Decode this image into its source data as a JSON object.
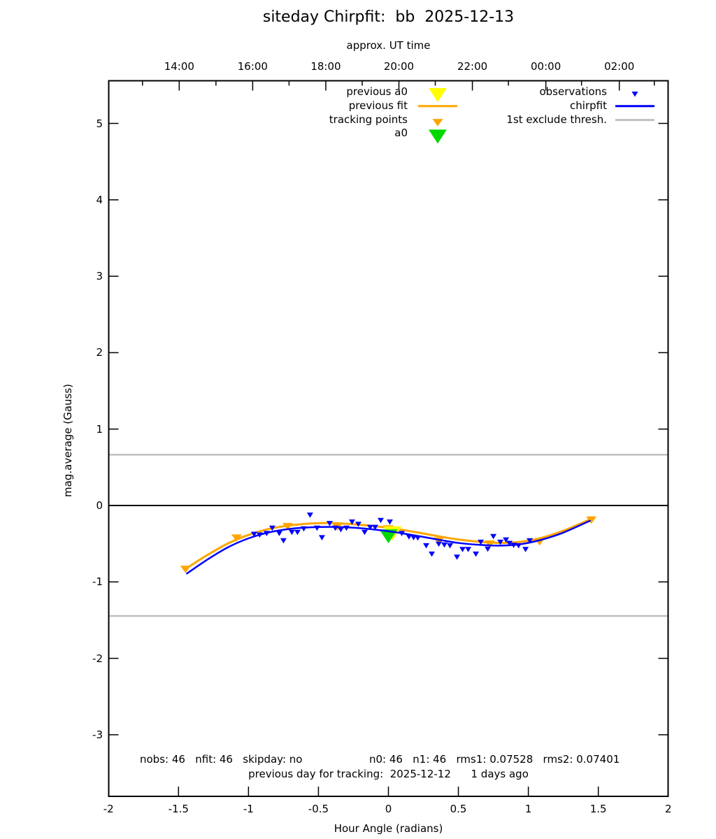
{
  "title": "siteday Chirpfit:  bb  2025-12-13",
  "axes": {
    "top": {
      "label": "approx. UT time",
      "ticks": [
        {
          "label": "14:00",
          "x": -1.495
        },
        {
          "label": "16:00",
          "x": -0.97
        },
        {
          "label": "18:00",
          "x": -0.4475
        },
        {
          "label": "20:00",
          "x": 0.075
        },
        {
          "label": "22:00",
          "x": 0.6
        },
        {
          "label": "00:00",
          "x": 1.125
        },
        {
          "label": "02:00",
          "x": 1.65
        }
      ],
      "minor_ticks_x": [
        -1.7575,
        -1.2325,
        -0.71,
        -0.1875,
        0.335,
        0.8575,
        1.38,
        1.9
      ]
    },
    "bottom": {
      "label": "Hour Angle (radians)",
      "ticks": [
        {
          "label": "-2",
          "x": -2
        },
        {
          "label": "-1.5",
          "x": -1.5
        },
        {
          "label": "-1",
          "x": -1
        },
        {
          "label": "-0.5",
          "x": -0.5
        },
        {
          "label": "0",
          "x": 0
        },
        {
          "label": "0.5",
          "x": 0.5
        },
        {
          "label": "1",
          "x": 1
        },
        {
          "label": "1.5",
          "x": 1.5
        },
        {
          "label": "2",
          "x": 2
        }
      ]
    },
    "left": {
      "label": "mag.average (Gauss)",
      "ticks": [
        {
          "label": "5",
          "y": 5
        },
        {
          "label": "4",
          "y": 4
        },
        {
          "label": "3",
          "y": 3
        },
        {
          "label": "2",
          "y": 2
        },
        {
          "label": "1",
          "y": 1
        },
        {
          "label": "0",
          "y": 0
        },
        {
          "label": "-1",
          "y": -1
        },
        {
          "label": "-2",
          "y": -2
        },
        {
          "label": "-3",
          "y": -3
        }
      ]
    }
  },
  "legend": {
    "left": [
      {
        "label": "previous a0",
        "marker": "triangle-large",
        "color": "#ffff00"
      },
      {
        "label": "previous fit",
        "marker": "line",
        "color": "#ffa500"
      },
      {
        "label": "tracking points",
        "marker": "triangle-small",
        "color": "#ffa500"
      },
      {
        "label": "a0",
        "marker": "triangle-large",
        "color": "#00d800"
      }
    ],
    "right": [
      {
        "label": "observations",
        "marker": "triangle-tiny",
        "color": "#0000ff"
      },
      {
        "label": "chirpfit",
        "marker": "line",
        "color": "#0000ff"
      },
      {
        "label": "1st exclude thresh.",
        "marker": "line",
        "color": "#c0c0c0"
      }
    ]
  },
  "stats": {
    "line1_left": "nobs: 46   nfit: 46   skipday: no",
    "line1_right": "n0: 46   n1: 46   rms1: 0.07528   rms2: 0.07401",
    "line2": "previous day for tracking:  2025-12-12      1 days ago"
  },
  "colors": {
    "observations": "#0000ff",
    "chirpfit": "#0000ff",
    "previous_fit": "#ffa500",
    "tracking_points": "#ffa500",
    "previous_a0": "#ffff00",
    "a0": "#00d800",
    "exclude_threshold": "#c0c0c0",
    "zero_line": "#000000",
    "frame": "#000000"
  },
  "chart_data": {
    "type": "scatter",
    "title": "siteday Chirpfit:  bb  2025-12-13",
    "xlabel": "Hour Angle (radians)",
    "x2label": "approx. UT time",
    "ylabel": "mag.average (Gauss)",
    "xlim": [
      -2,
      2
    ],
    "ylim": [
      -3.82,
      5.56
    ],
    "grid": false,
    "legend_position": "top-inside-two-columns",
    "zero_line_y": 0,
    "exclude_thresholds_y": [
      0.665,
      -1.445
    ],
    "series": [
      {
        "name": "observations",
        "type": "scatter",
        "marker": "triangle-tiny",
        "color": "#0000ff",
        "points": [
          [
            -0.96,
            -0.37
          ],
          [
            -0.92,
            -0.38
          ],
          [
            -0.87,
            -0.36
          ],
          [
            -0.83,
            -0.29
          ],
          [
            -0.78,
            -0.36
          ],
          [
            -0.75,
            -0.455
          ],
          [
            -0.69,
            -0.345
          ],
          [
            -0.65,
            -0.345
          ],
          [
            -0.605,
            -0.3
          ],
          [
            -0.56,
            -0.12
          ],
          [
            -0.51,
            -0.29
          ],
          [
            -0.475,
            -0.415
          ],
          [
            -0.42,
            -0.23
          ],
          [
            -0.38,
            -0.29
          ],
          [
            -0.34,
            -0.31
          ],
          [
            -0.3,
            -0.29
          ],
          [
            -0.26,
            -0.21
          ],
          [
            -0.215,
            -0.24
          ],
          [
            -0.17,
            -0.345
          ],
          [
            -0.13,
            -0.28
          ],
          [
            -0.095,
            -0.28
          ],
          [
            -0.055,
            -0.19
          ],
          [
            0.01,
            -0.21
          ],
          [
            0.095,
            -0.36
          ],
          [
            0.147,
            -0.405
          ],
          [
            0.18,
            -0.415
          ],
          [
            0.21,
            -0.42
          ],
          [
            0.27,
            -0.52
          ],
          [
            0.31,
            -0.63
          ],
          [
            0.36,
            -0.5
          ],
          [
            0.4,
            -0.51
          ],
          [
            0.44,
            -0.52
          ],
          [
            0.49,
            -0.67
          ],
          [
            0.53,
            -0.57
          ],
          [
            0.57,
            -0.57
          ],
          [
            0.625,
            -0.63
          ],
          [
            0.66,
            -0.475
          ],
          [
            0.71,
            -0.565
          ],
          [
            0.75,
            -0.4
          ],
          [
            0.8,
            -0.475
          ],
          [
            0.84,
            -0.445
          ],
          [
            0.865,
            -0.49
          ],
          [
            0.895,
            -0.515
          ],
          [
            0.93,
            -0.52
          ],
          [
            0.98,
            -0.57
          ],
          [
            1.01,
            -0.455
          ]
        ]
      },
      {
        "name": "chirpfit",
        "type": "line",
        "color": "#0000ff",
        "points": [
          [
            -1.44,
            -0.89
          ],
          [
            -1.3,
            -0.715
          ],
          [
            -1.15,
            -0.55
          ],
          [
            -1.0,
            -0.43
          ],
          [
            -0.85,
            -0.35
          ],
          [
            -0.7,
            -0.305
          ],
          [
            -0.55,
            -0.285
          ],
          [
            -0.4,
            -0.28
          ],
          [
            -0.25,
            -0.29
          ],
          [
            -0.1,
            -0.315
          ],
          [
            0.05,
            -0.35
          ],
          [
            0.2,
            -0.395
          ],
          [
            0.35,
            -0.445
          ],
          [
            0.5,
            -0.49
          ],
          [
            0.65,
            -0.515
          ],
          [
            0.8,
            -0.525
          ],
          [
            0.95,
            -0.505
          ],
          [
            1.1,
            -0.445
          ],
          [
            1.25,
            -0.355
          ],
          [
            1.44,
            -0.2
          ]
        ]
      },
      {
        "name": "previous fit",
        "type": "line",
        "color": "#ffa500",
        "points": [
          [
            -1.45,
            -0.83
          ],
          [
            -1.3,
            -0.655
          ],
          [
            -1.15,
            -0.5
          ],
          [
            -1.0,
            -0.385
          ],
          [
            -0.85,
            -0.305
          ],
          [
            -0.7,
            -0.26
          ],
          [
            -0.55,
            -0.235
          ],
          [
            -0.4,
            -0.23
          ],
          [
            -0.25,
            -0.245
          ],
          [
            -0.1,
            -0.27
          ],
          [
            0.05,
            -0.305
          ],
          [
            0.2,
            -0.35
          ],
          [
            0.35,
            -0.4
          ],
          [
            0.5,
            -0.445
          ],
          [
            0.65,
            -0.475
          ],
          [
            0.8,
            -0.49
          ],
          [
            0.95,
            -0.475
          ],
          [
            1.1,
            -0.42
          ],
          [
            1.25,
            -0.33
          ],
          [
            1.45,
            -0.175
          ]
        ]
      },
      {
        "name": "tracking points",
        "type": "scatter",
        "marker": "triangle-small",
        "color": "#ffa500",
        "points": [
          [
            -1.45,
            -0.82
          ],
          [
            -1.085,
            -0.41
          ],
          [
            -0.72,
            -0.26
          ],
          [
            -0.365,
            -0.265
          ],
          [
            0.0,
            -0.29
          ],
          [
            0.36,
            -0.45
          ],
          [
            0.725,
            -0.49
          ],
          [
            1.08,
            -0.46
          ],
          [
            1.45,
            -0.175
          ]
        ]
      },
      {
        "name": "previous a0",
        "type": "scatter",
        "marker": "triangle-large",
        "color": "#ffff00",
        "points": [
          [
            0.03,
            -0.345
          ]
        ]
      },
      {
        "name": "a0",
        "type": "scatter",
        "marker": "triangle-large",
        "color": "#00d800",
        "points": [
          [
            0.0,
            -0.385
          ]
        ]
      }
    ],
    "stats_text": [
      "nobs: 46   nfit: 46   skipday: no        n0: 46   n1: 46   rms1: 0.07528   rms2: 0.07401",
      "previous day for tracking:  2025-12-12      1 days ago"
    ]
  }
}
